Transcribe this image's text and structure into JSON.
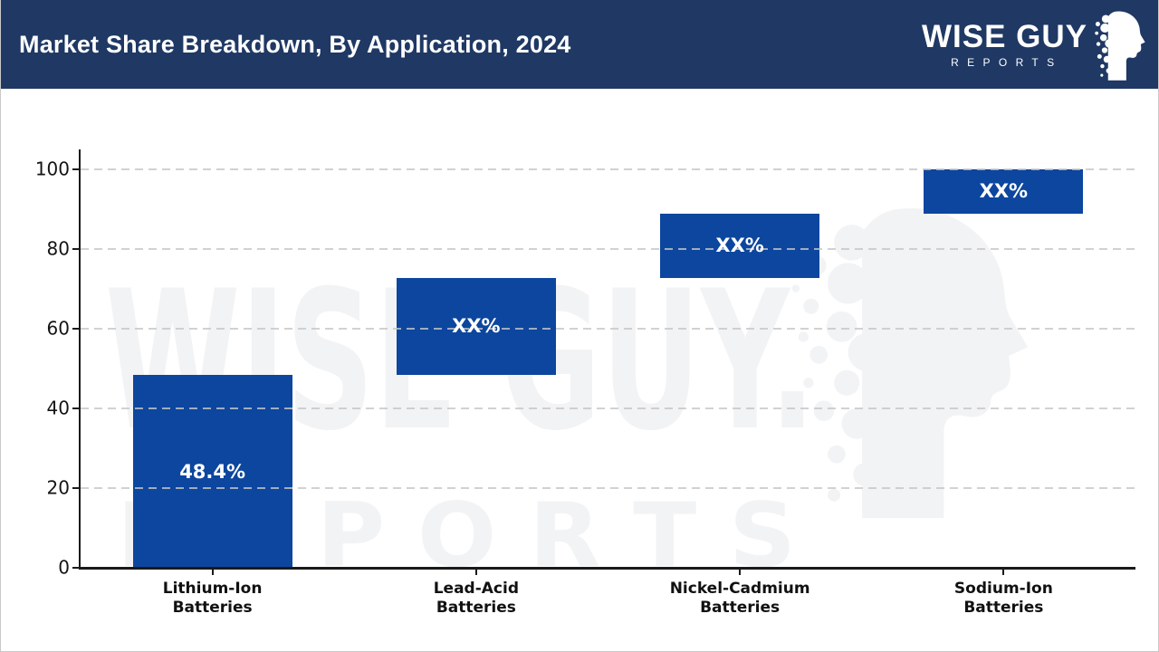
{
  "header": {
    "title": "Market Share Breakdown, By Application, 2024",
    "logo": {
      "line1": "WISE GUY",
      "line2": "REPORTS"
    }
  },
  "watermark": {
    "line1": "WISE GUY.",
    "line2": "R E P O R T S"
  },
  "colors": {
    "header_bg": "#1f3864",
    "bar": "#0c469e",
    "bar_label": "#ffffff",
    "grid": "#c6c6c6",
    "axis": "#1a1a1a",
    "watermark": "#f2f3f5"
  },
  "chart_data": {
    "type": "bar",
    "subtype": "waterfall-cumulative",
    "title": "Market Share Breakdown, By Application, 2024",
    "categories": [
      "Lithium-Ion Batteries",
      "Lead-Acid Batteries",
      "Nickel-Cadmium Batteries",
      "Sodium-Ion Batteries"
    ],
    "category_lines": [
      [
        "Lithium-Ion",
        "Batteries"
      ],
      [
        "Lead-Acid",
        "Batteries"
      ],
      [
        "Nickel-Cadmium",
        "Batteries"
      ],
      [
        "Sodium-Ion",
        "Batteries"
      ]
    ],
    "segments": [
      {
        "category": "Lithium-Ion Batteries",
        "start": 0,
        "end": 48.4,
        "label": "48.4%"
      },
      {
        "category": "Lead-Acid Batteries",
        "start": 48.4,
        "end": 72.8,
        "label": "XX%"
      },
      {
        "category": "Nickel-Cadmium Batteries",
        "start": 72.8,
        "end": 88.9,
        "label": "XX%"
      },
      {
        "category": "Sodium-Ion Batteries",
        "start": 88.9,
        "end": 100,
        "label": "XX%"
      }
    ],
    "yticks": [
      0,
      20,
      40,
      60,
      80,
      100
    ],
    "ylim": [
      0,
      105
    ],
    "xlabel": "",
    "ylabel": "",
    "grid": "horizontal-dashed-over-bars",
    "legend": null,
    "bar_color": "#0c469e"
  }
}
